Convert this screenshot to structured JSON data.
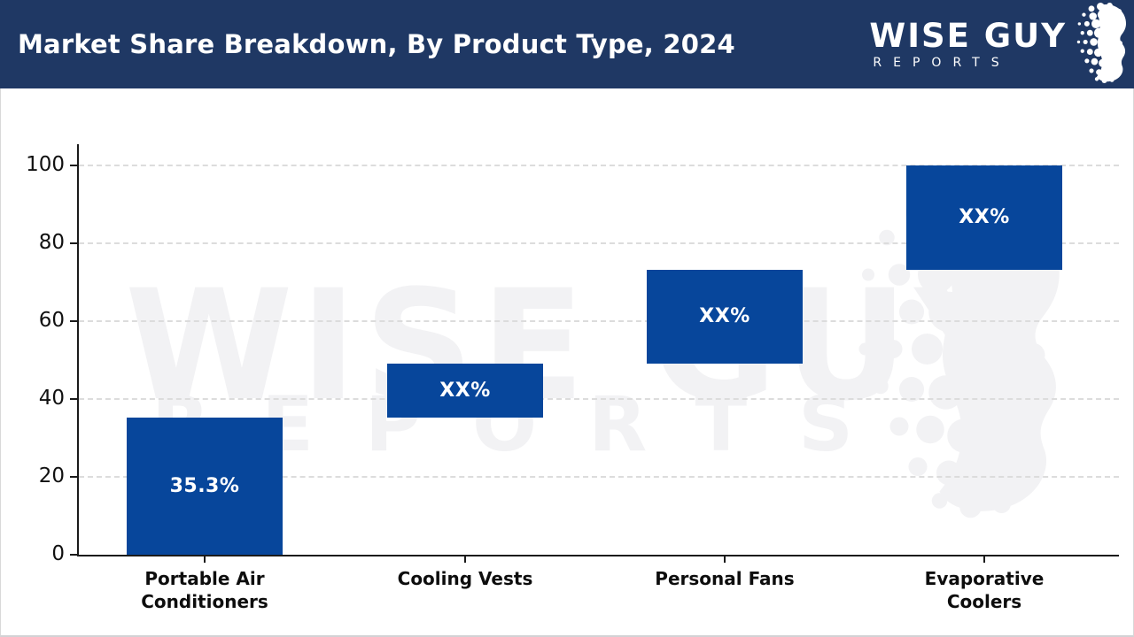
{
  "header": {
    "title": "Market Share Breakdown, By Product Type, 2024",
    "logo": {
      "name": "WISE GUY",
      "sub": "REPORTS"
    }
  },
  "watermark": {
    "name": "WISE GUY",
    "sub": "REPORTS"
  },
  "colors": {
    "header_bg": "#1f3864",
    "bar": "#07469b",
    "grid": "#dcdcdc",
    "watermark": "#f2f2f4",
    "axis": "#1a1a1a"
  },
  "chart_data": {
    "type": "bar",
    "subtype": "waterfall",
    "title": "Market Share Breakdown, By Product Type, 2024",
    "xlabel": "",
    "ylabel": "",
    "ylim": [
      0,
      105
    ],
    "yticks": [
      0,
      20,
      40,
      60,
      80,
      100
    ],
    "grid": "horizontal-dashed",
    "legend": false,
    "bar_color": "#07469b",
    "categories": [
      "Portable Air Conditioners",
      "Cooling Vests",
      "Personal Fans",
      "Evaporative Coolers"
    ],
    "segments": [
      {
        "category": "Portable Air Conditioners",
        "base": 0,
        "top": 35.3,
        "value": 35.3,
        "label": "35.3%"
      },
      {
        "category": "Cooling Vests",
        "base": 35.3,
        "top": 49.1,
        "value": 13.8,
        "label": "XX%"
      },
      {
        "category": "Personal Fans",
        "base": 49.1,
        "top": 73.2,
        "value": 24.1,
        "label": "XX%"
      },
      {
        "category": "Evaporative Coolers",
        "base": 73.2,
        "top": 100,
        "value": 26.8,
        "label": "XX%"
      }
    ]
  }
}
